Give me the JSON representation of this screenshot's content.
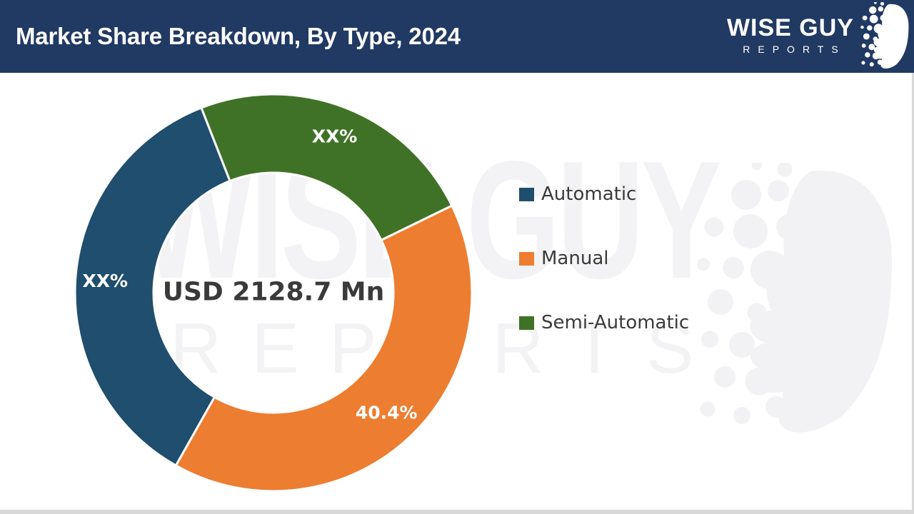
{
  "header": {
    "title": "Market Share Breakdown, By Type, 2024"
  },
  "logo": {
    "line1": "WISE GUY",
    "line2": "REPORTS",
    "icon": "wiseguy-head-profile-with-dots"
  },
  "watermark": {
    "line1": "WISE GUY",
    "line2": "REPORTS",
    "icon": "wiseguy-head-profile-with-dots"
  },
  "chart_data": {
    "type": "pie",
    "subtype": "donut",
    "title": "Market Share Breakdown, By Type, 2024",
    "center_label": "USD 2128.7 Mn",
    "categories": [
      "Automatic",
      "Manual",
      "Semi-Automatic"
    ],
    "values": [
      35.9,
      40.4,
      23.7
    ],
    "values_estimated": [
      true,
      false,
      true
    ],
    "displayed_labels": [
      "XX%",
      "40.4%",
      "XX%"
    ],
    "colors": [
      "#1F4E6E",
      "#ED7D31",
      "#3F7226"
    ],
    "label_color": "#FFFFFF",
    "center_label_color": "#3A3A3A",
    "legend_position": "right",
    "start_angle_deg": 26,
    "direction": "counterclockwise",
    "draw_order": [
      "Semi-Automatic",
      "Automatic",
      "Manual"
    ]
  },
  "legend": {
    "items": [
      {
        "label": "Automatic",
        "color": "#1F4E6E"
      },
      {
        "label": "Manual",
        "color": "#ED7D31"
      },
      {
        "label": "Semi-Automatic",
        "color": "#3F7226"
      }
    ]
  },
  "colors": {
    "header_bg": "#213A63",
    "header_text": "#FFFFFF",
    "watermark": "#F3F3F5",
    "page_edge": "#D8D8D8"
  }
}
